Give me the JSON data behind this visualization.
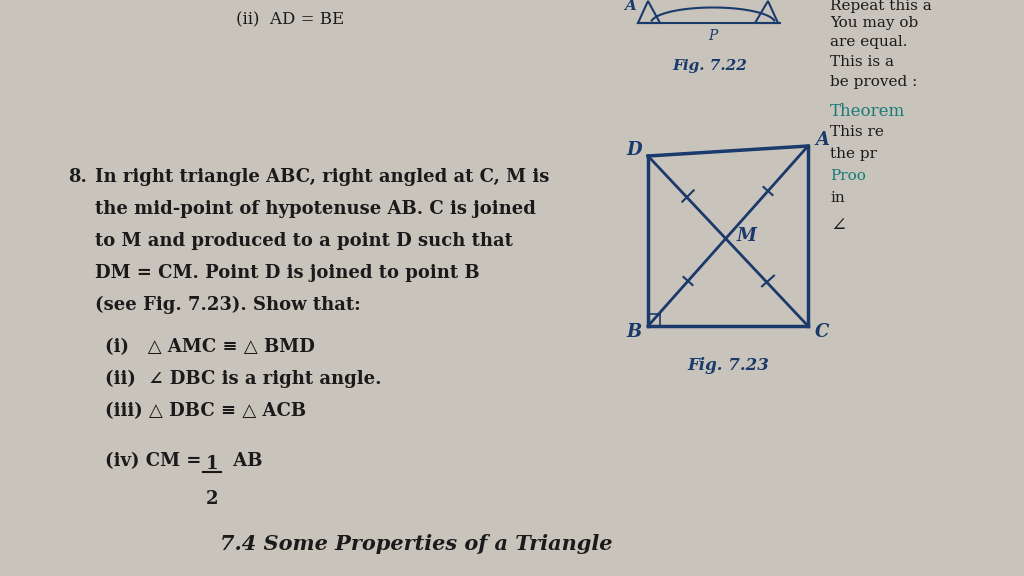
{
  "bg_color": "#c8c4bb",
  "text_color": "#1a1a1a",
  "blue_color": "#1a3a6b",
  "theorem_color": "#1a7a7a",
  "title_ii": "(ii)  AD = BE",
  "problem_text_lines": [
    "In right triangle ABC, right angled at C, M is",
    "the mid-point of hypotenuse AB. C is joined",
    "to M and produced to a point D such that",
    "DM = CM. Point D is joined to point B",
    "(see Fig. 7.23). Show that:"
  ],
  "items": [
    "(i)   △ AMC ≡ △ BMD",
    "(ii)  ∠ DBC is a right angle.",
    "(iii) △ DBC ≡ △ ACB"
  ],
  "fig722_label": "Fig. 7.22",
  "fig723_label": "Fig. 7.23",
  "section_title": "7.4 Some Properties of a Triangle",
  "right_col": [
    [
      "Repeat this a",
      "#1a1a1a",
      11
    ],
    [
      "You may ob",
      "#1a1a1a",
      11
    ],
    [
      "are equal.",
      "#1a1a1a",
      11
    ],
    [
      "This is a",
      "#1a1a1a",
      11
    ],
    [
      "be proved :",
      "#1a1a1a",
      11
    ],
    [
      "Theorem",
      "#1a7a7a",
      12
    ],
    [
      "This re",
      "#1a1a1a",
      11
    ],
    [
      "the pr",
      "#1a1a1a",
      11
    ],
    [
      "Proo",
      "#1a7a7a",
      11
    ],
    [
      "in",
      "#1a1a1a",
      11
    ],
    [
      "∠",
      "#1a1a1a",
      14
    ]
  ]
}
